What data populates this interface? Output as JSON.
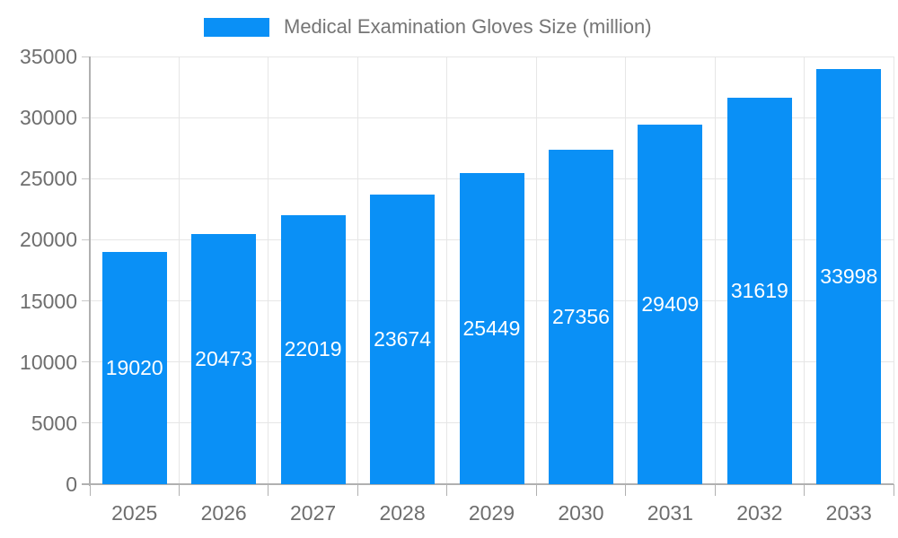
{
  "legend": {
    "label": "Medical Examination Gloves Size (million)"
  },
  "chart_data": {
    "type": "bar",
    "title": "Medical Examination Gloves Size (million)",
    "categories": [
      "2025",
      "2026",
      "2027",
      "2028",
      "2029",
      "2030",
      "2031",
      "2032",
      "2033"
    ],
    "values": [
      19020,
      20473,
      22019,
      23674,
      25449,
      27356,
      29409,
      31619,
      33998
    ],
    "xlabel": "",
    "ylabel": "",
    "ylim": [
      0,
      35000
    ],
    "yticks": [
      0,
      5000,
      10000,
      15000,
      20000,
      25000,
      30000,
      35000
    ],
    "grid": true,
    "legend_position": "top",
    "bar_color": "#0a90f6",
    "value_label_color": "#ffffff",
    "axis_text_color": "#6e6e6e",
    "legend_text_color": "#757575",
    "grid_color": "#e6e6e6",
    "axis_line_color": "#b0b0b0"
  }
}
